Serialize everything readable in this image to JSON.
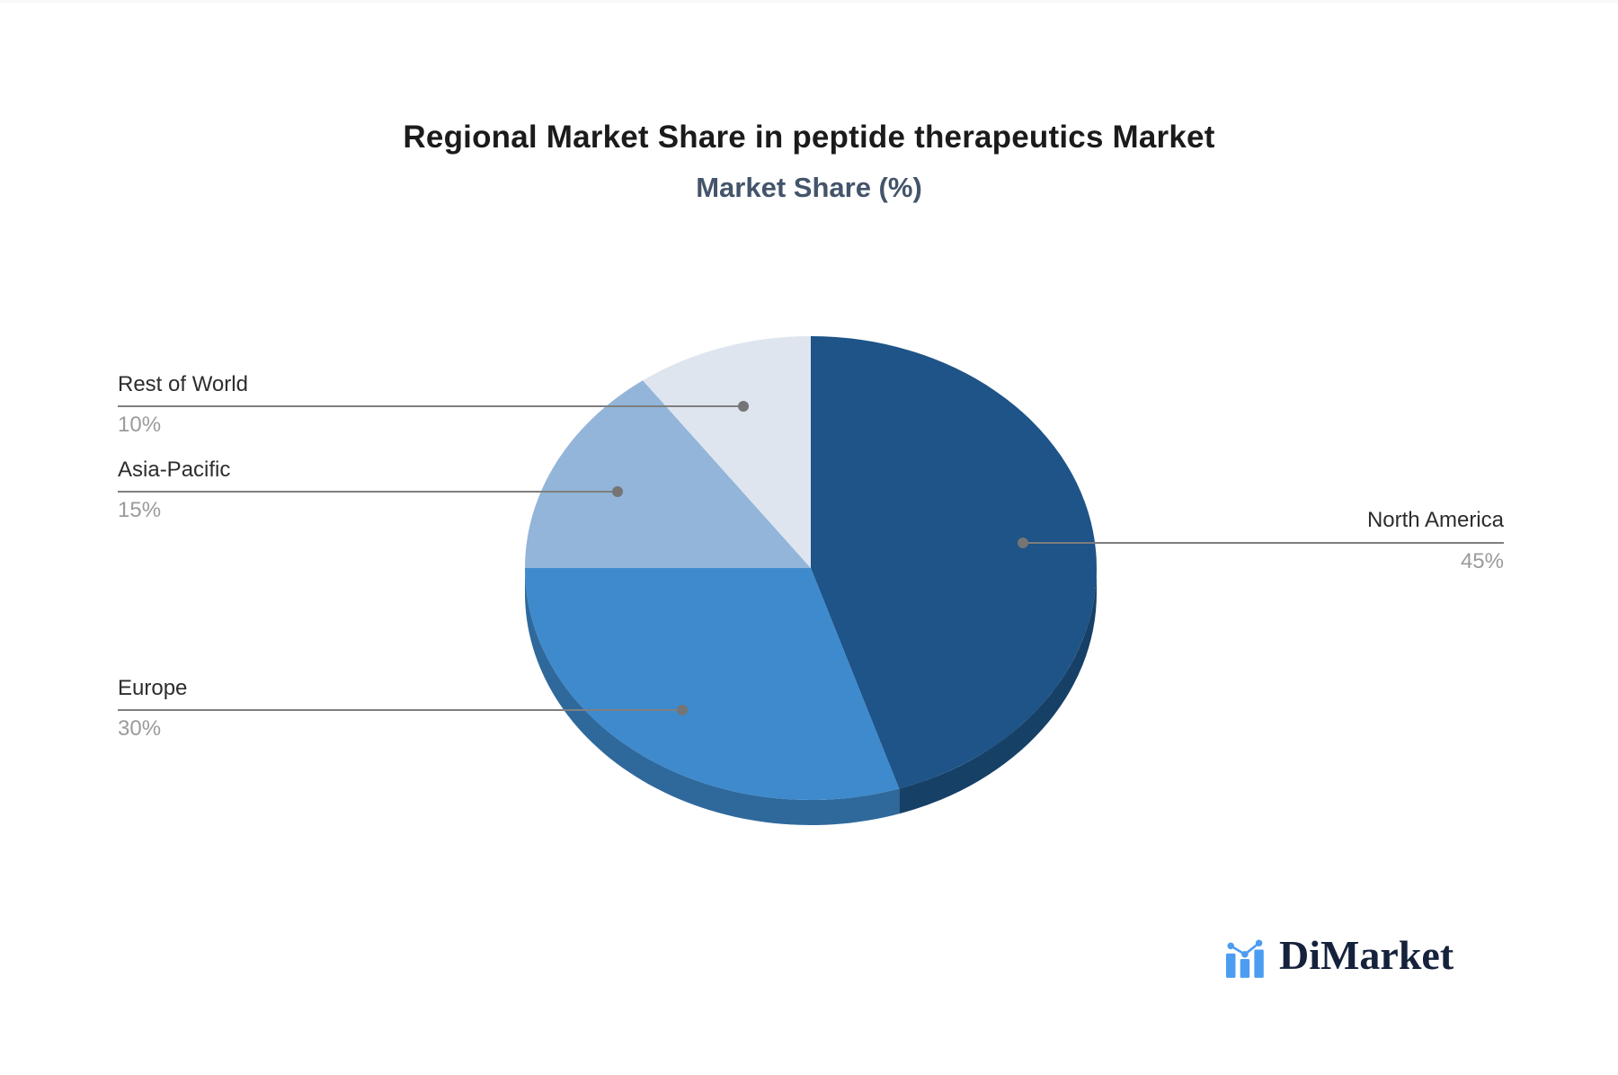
{
  "chart_data": {
    "type": "pie",
    "style": "3d",
    "title": "Regional Market Share in peptide therapeutics Market",
    "subtitle": "Market Share (%)",
    "unit": "%",
    "start_angle_deg": 0,
    "direction": "clockwise",
    "legend": "none",
    "categories": [
      "North America",
      "Europe",
      "Asia-Pacific",
      "Rest of World"
    ],
    "values": [
      45,
      30,
      15,
      10
    ],
    "colors": [
      "#1E5487",
      "#3E8ACD",
      "#92B5D9",
      "#DEE5EF"
    ],
    "slices": [
      {
        "label": "North America",
        "value": 45,
        "pct_text": "45%",
        "color": "#1E5487"
      },
      {
        "label": "Europe",
        "value": 30,
        "pct_text": "30%",
        "color": "#3E8ACD"
      },
      {
        "label": "Asia-Pacific",
        "value": 15,
        "pct_text": "15%",
        "color": "#92B5D9"
      },
      {
        "label": "Rest of World",
        "value": 10,
        "pct_text": "10%",
        "color": "#DEE5EF"
      }
    ],
    "leader_line_color": "#7f7f7f",
    "label_color": "#2d2d2d",
    "pct_color": "#9b9b9b"
  },
  "branding": {
    "logo_text": "DiMarket",
    "logo_color": "#16213C",
    "logo_icon": "bar-line-chart-icon",
    "logo_icon_color": "#4B9DF1"
  }
}
